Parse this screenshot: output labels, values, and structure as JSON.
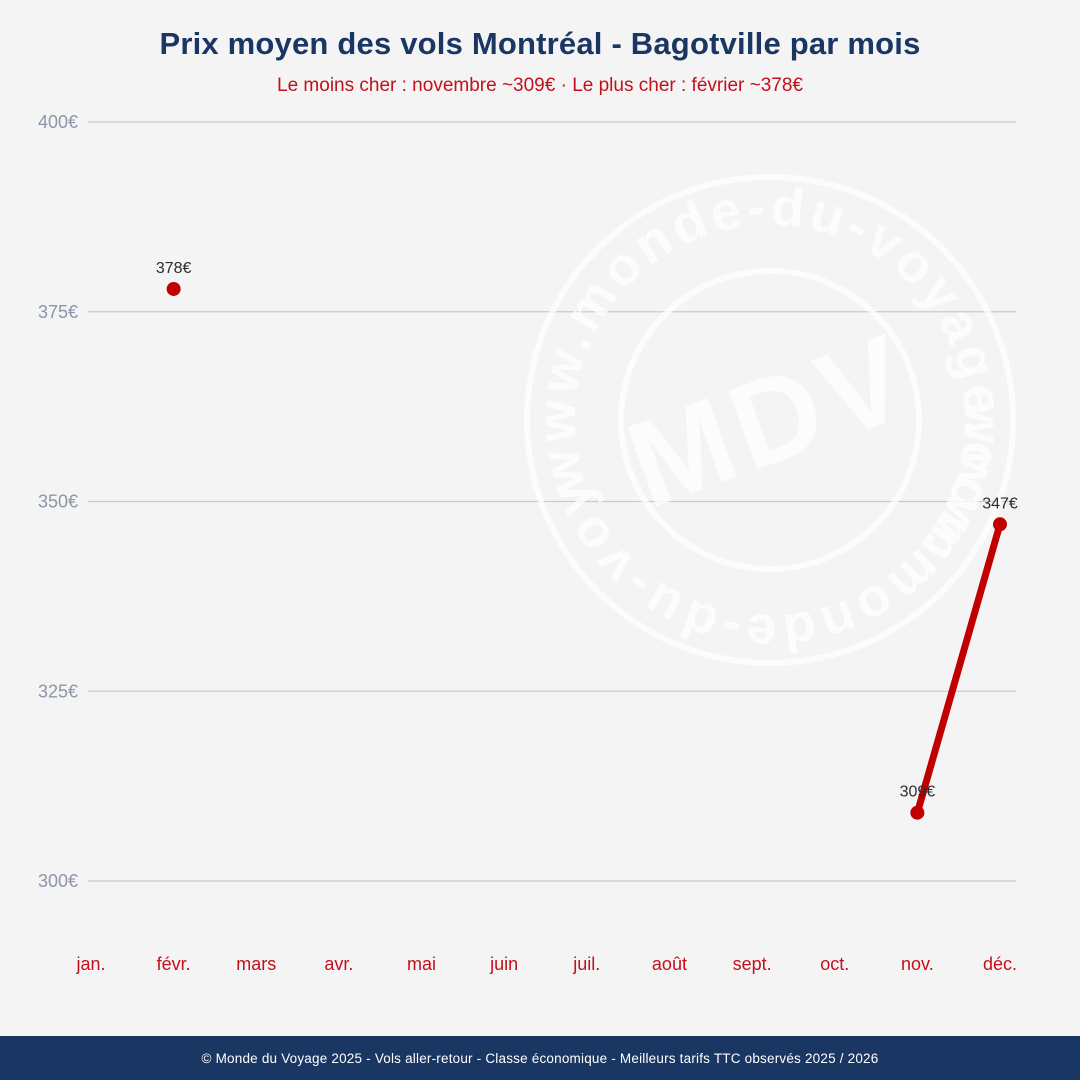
{
  "header": {
    "title": "Prix moyen des vols Montréal - Bagotville par mois",
    "subtitle": "Le moins cher : novembre ~309€ · Le plus cher : février ~378€"
  },
  "watermark": {
    "text": "www.monde-du-voyage.com",
    "monogram": "MDV"
  },
  "footer": {
    "text": "© Monde du Voyage 2025 - Vols aller-retour - Classe économique - Meilleurs tarifs TTC observés 2025 / 2026"
  },
  "chart_data": {
    "type": "line",
    "title": "Prix moyen des vols Montréal - Bagotville par mois",
    "categories": [
      "jan.",
      "févr.",
      "mars",
      "avr.",
      "mai",
      "juin",
      "juil.",
      "août",
      "sept.",
      "oct.",
      "nov.",
      "déc."
    ],
    "series": [
      {
        "name": "Prix moyen des vols (€)",
        "values": [
          null,
          378,
          null,
          null,
          null,
          null,
          null,
          null,
          null,
          null,
          309,
          347
        ]
      }
    ],
    "highlights": {
      "cheapest_month": "novembre",
      "cheapest_value": 309,
      "most_expensive_month": "février",
      "most_expensive_value": 378
    },
    "xlabel": "",
    "ylabel": "",
    "ylim": [
      300,
      400
    ],
    "yticks": [
      400,
      375,
      350,
      325,
      300
    ],
    "ytick_suffix": "€",
    "grid": true,
    "legend": "none",
    "colors": {
      "line": "#c00000",
      "point": "#c00000",
      "month_label": "#c2101c",
      "axis_label": "#8c96a8",
      "gridline": "#c5cbd8",
      "value_label": "#2b2b33",
      "title": "#1a3763",
      "footer_bg": "#1a3763"
    }
  }
}
